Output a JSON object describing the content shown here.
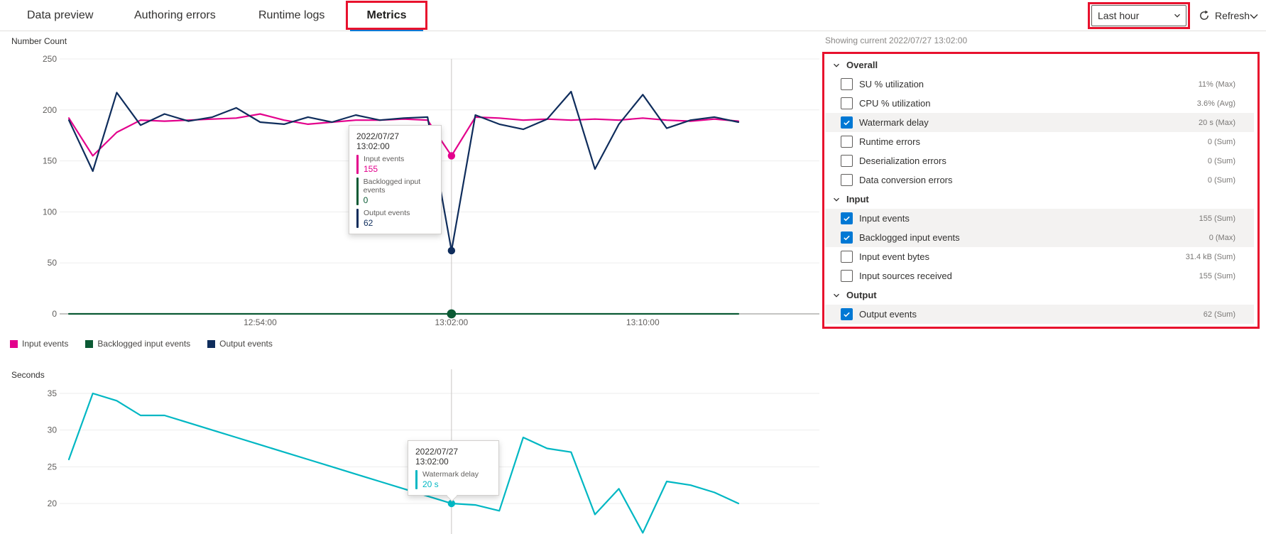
{
  "tabs": [
    {
      "label": "Data preview"
    },
    {
      "label": "Authoring errors"
    },
    {
      "label": "Runtime logs"
    },
    {
      "label": "Metrics",
      "active": true
    }
  ],
  "toolbar": {
    "time_range_value": "Last hour",
    "refresh_label": "Refresh"
  },
  "status_line": "Showing current 2022/07/27 13:02:00",
  "chart_data": [
    {
      "type": "line",
      "title": "Number Count",
      "ylim": [
        0,
        250
      ],
      "yticks": [
        0,
        50,
        100,
        150,
        200,
        250
      ],
      "x_start": "12:46:00",
      "x_step_minutes": 1,
      "xticks": [
        {
          "label": "12:54:00",
          "index": 8
        },
        {
          "label": "13:02:00",
          "index": 16
        },
        {
          "label": "13:10:00",
          "index": 24
        }
      ],
      "crosshair_index": 16,
      "series": [
        {
          "name": "Input events",
          "color": "#e3008c",
          "values": [
            192,
            155,
            178,
            190,
            189,
            190,
            191,
            192,
            196,
            190,
            186,
            188,
            190,
            190,
            191,
            190,
            155,
            193,
            192,
            190,
            191,
            190,
            191,
            190,
            192,
            190,
            189,
            191,
            189
          ]
        },
        {
          "name": "Backlogged input events",
          "color": "#0b5a34",
          "values": [
            0,
            0,
            0,
            0,
            0,
            0,
            0,
            0,
            0,
            0,
            0,
            0,
            0,
            0,
            0,
            0,
            0,
            0,
            0,
            0,
            0,
            0,
            0,
            0,
            0,
            0,
            0,
            0,
            0
          ]
        },
        {
          "name": "Output events",
          "color": "#0f2d5c",
          "values": [
            190,
            140,
            217,
            185,
            196,
            189,
            193,
            202,
            188,
            186,
            193,
            188,
            195,
            190,
            192,
            193,
            62,
            195,
            186,
            181,
            191,
            218,
            142,
            186,
            215,
            182,
            190,
            193,
            188
          ]
        }
      ],
      "tooltip": {
        "title": "2022/07/27 13:02:00",
        "rows": [
          {
            "label": "Input events",
            "value": "155",
            "color": "#e3008c"
          },
          {
            "label": "Backlogged input events",
            "value": "0",
            "color": "#0b5a34"
          },
          {
            "label": "Output events",
            "value": "62",
            "color": "#0f2d5c"
          }
        ]
      }
    },
    {
      "type": "line",
      "title": "Seconds",
      "ylim": [
        14,
        37
      ],
      "yticks": [
        20,
        25,
        30,
        35
      ],
      "x_start": "12:46:00",
      "x_step_minutes": 1,
      "crosshair_index": 16,
      "series": [
        {
          "name": "Watermark delay",
          "color": "#00b7c3",
          "values": [
            26,
            35,
            34,
            32,
            32,
            31,
            30,
            29,
            28,
            27,
            26,
            25,
            24,
            23,
            22,
            21,
            20,
            19.8,
            19,
            29,
            27.5,
            27,
            18.5,
            22,
            16,
            23,
            22.5,
            21.5,
            20
          ]
        }
      ],
      "tooltip": {
        "title": "2022/07/27 13:02:00",
        "rows": [
          {
            "label": "Watermark delay",
            "value": "20 s",
            "color": "#00b7c3"
          }
        ]
      }
    }
  ],
  "metrics_panel": {
    "sections": [
      {
        "label": "Overall",
        "items": [
          {
            "label": "SU % utilization",
            "value": "11% (Max)",
            "checked": false
          },
          {
            "label": "CPU % utilization",
            "value": "3.6% (Avg)",
            "checked": false
          },
          {
            "label": "Watermark delay",
            "value": "20 s (Max)",
            "checked": true
          },
          {
            "label": "Runtime errors",
            "value": "0 (Sum)",
            "checked": false
          },
          {
            "label": "Deserialization errors",
            "value": "0 (Sum)",
            "checked": false
          },
          {
            "label": "Data conversion errors",
            "value": "0 (Sum)",
            "checked": false
          }
        ]
      },
      {
        "label": "Input",
        "items": [
          {
            "label": "Input events",
            "value": "155 (Sum)",
            "checked": true
          },
          {
            "label": "Backlogged input events",
            "value": "0 (Max)",
            "checked": true
          },
          {
            "label": "Input event bytes",
            "value": "31.4 kB (Sum)",
            "checked": false
          },
          {
            "label": "Input sources received",
            "value": "155 (Sum)",
            "checked": false
          }
        ]
      },
      {
        "label": "Output",
        "items": [
          {
            "label": "Output events",
            "value": "62 (Sum)",
            "checked": true
          }
        ]
      }
    ]
  }
}
